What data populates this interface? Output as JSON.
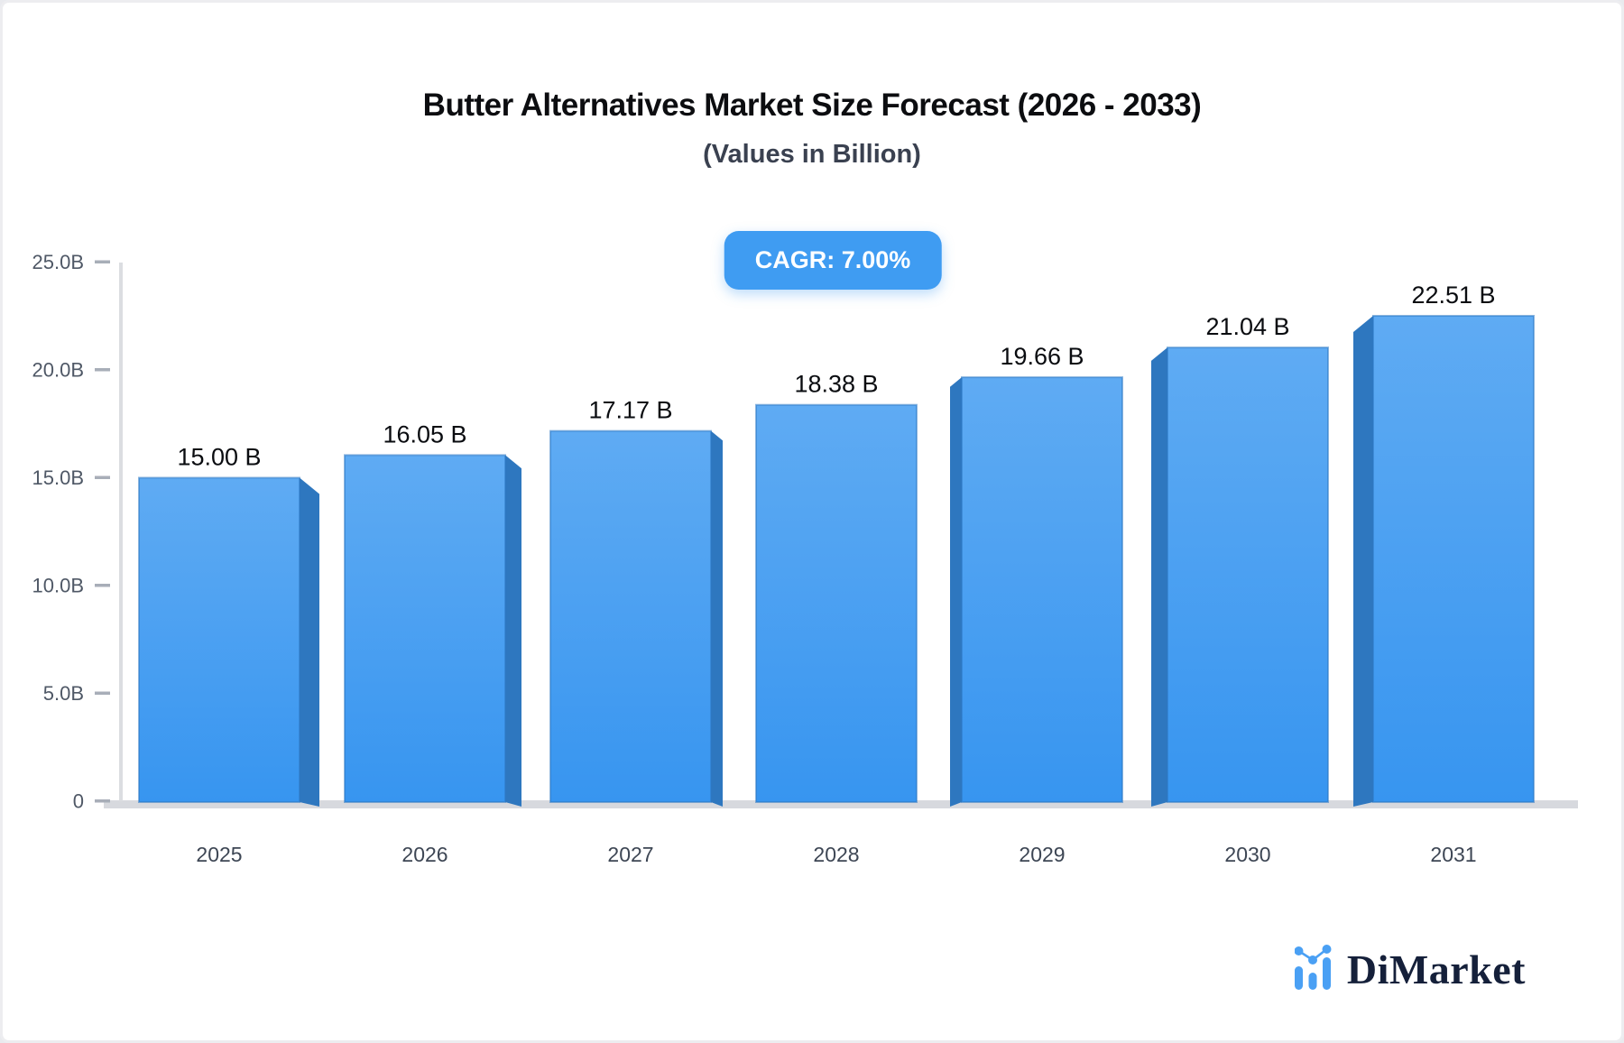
{
  "header": {
    "title": "Butter Alternatives Market Size Forecast (2026 - 2033)",
    "subtitle": "(Values in Billion)",
    "cagr_label": "CAGR: 7.00%"
  },
  "chart_data": {
    "type": "bar",
    "title": "Butter Alternatives Market Size Forecast (2026 - 2033)",
    "subtitle": "(Values in Billion)",
    "cagr": "7.00%",
    "categories": [
      "2025",
      "2026",
      "2027",
      "2028",
      "2029",
      "2030",
      "2031"
    ],
    "values": [
      15.0,
      16.05,
      17.17,
      18.38,
      19.66,
      21.04,
      22.51
    ],
    "value_labels": [
      "15.00 B",
      "16.05 B",
      "17.17 B",
      "18.38 B",
      "19.66 B",
      "21.04 B",
      "22.51 B"
    ],
    "xlabel": "",
    "ylabel": "",
    "ylim": [
      0,
      25
    ],
    "y_tick_values": [
      0,
      5,
      10,
      15,
      20,
      25
    ],
    "y_tick_labels": [
      "0",
      "5.0B",
      "10.0B",
      "15.0B",
      "20.0B",
      "25.0B"
    ],
    "grid": false,
    "legend": false,
    "bar_style": "3d-perspective"
  },
  "branding": {
    "logo_text": "DiMarket",
    "logo_icon": "bar-chart-logo-icon"
  },
  "colors": {
    "bar_top": "#5fabf3",
    "bar_bottom": "#3795f0",
    "bar_edge": "#2d79c2",
    "bar_side": "#2e77bf",
    "badge_bg": "#3f9cf2",
    "badge_text": "#ffffff",
    "axis_text": "#4f5866",
    "x_label_text": "#3d4654",
    "value_label_text": "#0a0c10",
    "axis_line": "#dbdde1",
    "baseline": "#d7d9de",
    "logo_navy": "#15203a",
    "logo_blue": "#4aa0f4"
  }
}
